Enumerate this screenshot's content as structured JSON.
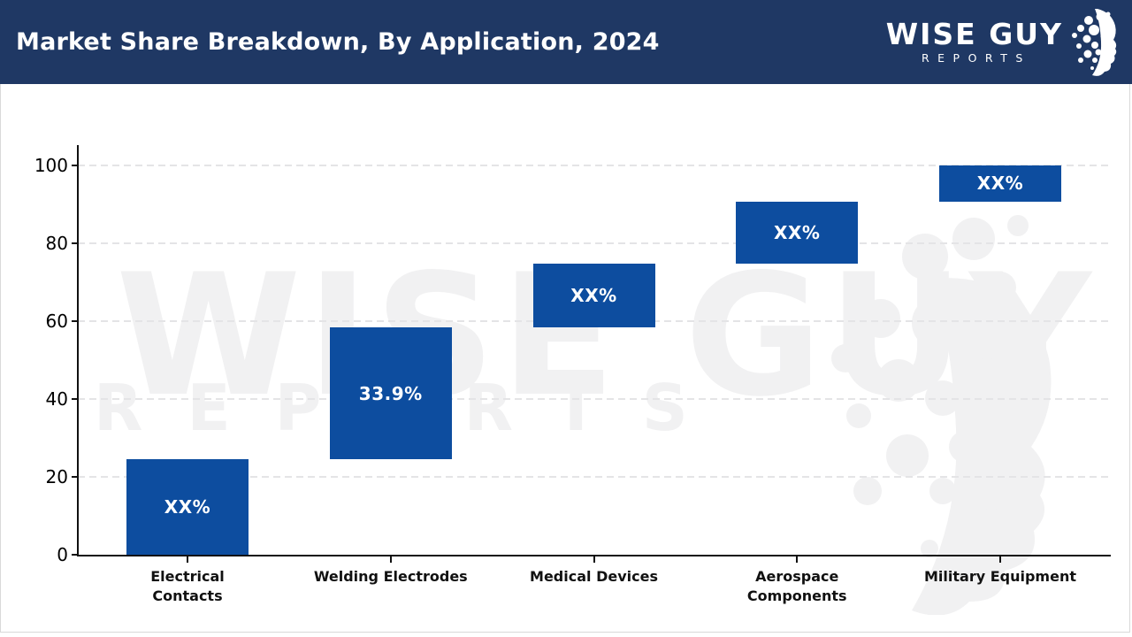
{
  "header": {
    "title": "Market Share Breakdown, By Application, 2024",
    "logo": {
      "wordmark": "WISE GUY",
      "subtext": "REPORTS"
    },
    "bg_color": "#1f3864"
  },
  "watermark": {
    "wordmark": "WISE GUY",
    "subtext": "REPORTS"
  },
  "chart_data": {
    "type": "bar",
    "subtype": "waterfall",
    "title": "Market Share Breakdown, By Application, 2024",
    "categories": [
      "Electrical\nContacts",
      "Welding Electrodes",
      "Medical Devices",
      "Aerospace\nComponents",
      "Military Equipment"
    ],
    "segments": [
      {
        "category": "Electrical Contacts",
        "label": "XX%",
        "start": 0,
        "end": 24.5
      },
      {
        "category": "Welding Electrodes",
        "label": "33.9%",
        "start": 24.5,
        "end": 58.4
      },
      {
        "category": "Medical Devices",
        "label": "XX%",
        "start": 58.4,
        "end": 74.8
      },
      {
        "category": "Aerospace Components",
        "label": "XX%",
        "start": 74.8,
        "end": 90.7
      },
      {
        "category": "Military Equipment",
        "label": "XX%",
        "start": 90.7,
        "end": 100
      }
    ],
    "y_ticks": [
      0,
      20,
      40,
      60,
      80,
      100
    ],
    "ylim": [
      0,
      105
    ],
    "xlabel": "",
    "ylabel": "",
    "bar_color": "#0d4d9f",
    "grid": "horizontal-dashed",
    "legend": "none"
  }
}
